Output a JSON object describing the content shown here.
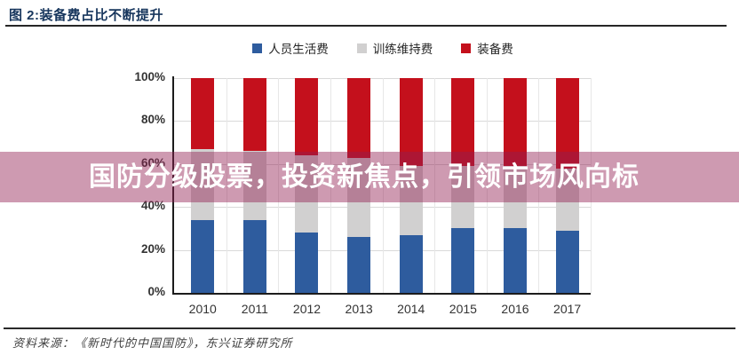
{
  "header": {
    "title": "图 2:装备费占比不断提升"
  },
  "overlay_banner": {
    "text": "国防分级股票，投资新焦点，引领市场风向标"
  },
  "footer": {
    "source": "资料来源：《新时代的中国国防》，东兴证券研究所"
  },
  "chart_data": {
    "type": "bar",
    "stacked": true,
    "title": "图 2:装备费占比不断提升",
    "categories": [
      "2010",
      "2011",
      "2012",
      "2013",
      "2014",
      "2015",
      "2016",
      "2017"
    ],
    "series": [
      {
        "name": "人员生活费",
        "color": "#2e5c9e",
        "values": [
          34,
          34,
          28,
          26,
          27,
          30,
          30,
          29
        ]
      },
      {
        "name": "训练维持费",
        "color": "#d1d0d0",
        "values": [
          33,
          32,
          36,
          37,
          32,
          29,
          29,
          29
        ]
      },
      {
        "name": "装备费",
        "color": "#c4101c",
        "values": [
          33,
          34,
          36,
          37,
          41,
          41,
          41,
          42
        ]
      }
    ],
    "unit": "%",
    "y_ticks": [
      "0%",
      "20%",
      "40%",
      "60%",
      "80%",
      "100%"
    ],
    "ylim": [
      0,
      100
    ],
    "grid": true,
    "legend_position": "top"
  },
  "colors": {
    "title": "#17365d",
    "banner_overlay": "rgba(146,31,82,0.45)",
    "banner_text": "#ffffff",
    "axis": "#1c1c1c",
    "gridline": "#d9d9d9",
    "tick_label": "#333333"
  }
}
